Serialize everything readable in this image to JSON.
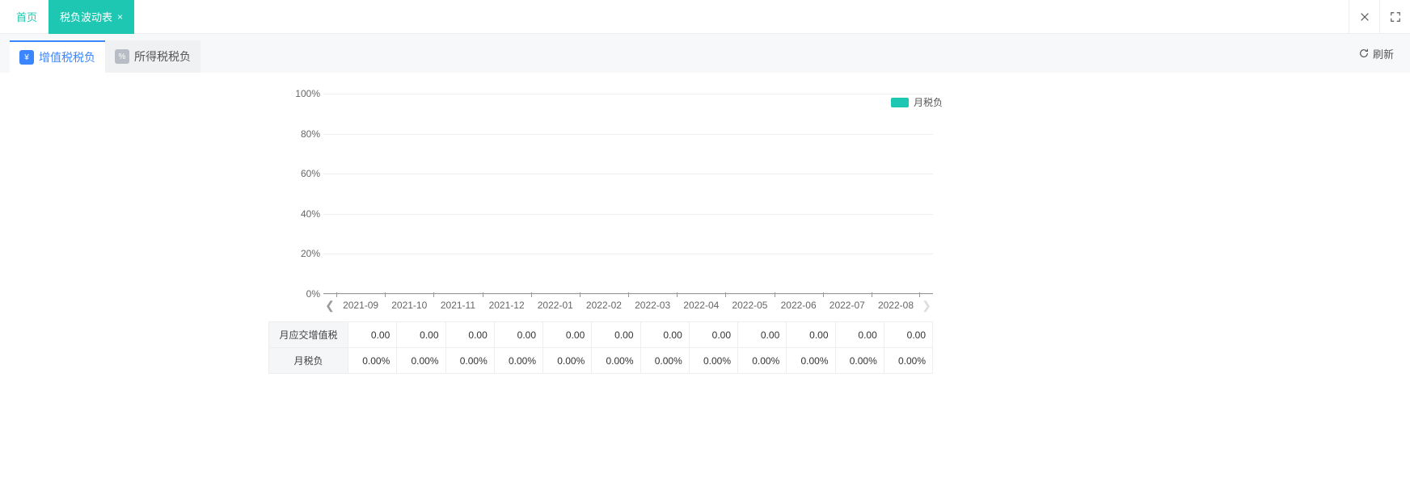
{
  "top_tabs": {
    "home": "首页",
    "active": "税负波动表"
  },
  "subtabs": {
    "vat": "增值税税负",
    "income": "所得税税负"
  },
  "actions": {
    "refresh": "刷新"
  },
  "chart": {
    "type": "line",
    "legend_label": "月税负",
    "legend_color": "#1dc7b1",
    "background_color": "#ffffff",
    "grid_color": "#eeeeee",
    "axis_color": "#999999",
    "label_color": "#666666",
    "label_fontsize": 12,
    "ylim": [
      0,
      100
    ],
    "ytick_step": 20,
    "y_ticks": [
      "0%",
      "20%",
      "40%",
      "60%",
      "80%",
      "100%"
    ],
    "x_categories": [
      "2021-09",
      "2021-10",
      "2021-11",
      "2021-12",
      "2022-01",
      "2022-02",
      "2022-03",
      "2022-04",
      "2022-05",
      "2022-06",
      "2022-07",
      "2022-08"
    ],
    "series": [
      {
        "name": "月税负",
        "color": "#1dc7b1",
        "values": [
          0,
          0,
          0,
          0,
          0,
          0,
          0,
          0,
          0,
          0,
          0,
          0
        ]
      }
    ]
  },
  "table": {
    "rows": [
      {
        "header": "月应交增值税",
        "values": [
          "0.00",
          "0.00",
          "0.00",
          "0.00",
          "0.00",
          "0.00",
          "0.00",
          "0.00",
          "0.00",
          "0.00",
          "0.00",
          "0.00"
        ]
      },
      {
        "header": "月税负",
        "values": [
          "0.00%",
          "0.00%",
          "0.00%",
          "0.00%",
          "0.00%",
          "0.00%",
          "0.00%",
          "0.00%",
          "0.00%",
          "0.00%",
          "0.00%",
          "0.00%"
        ]
      }
    ]
  }
}
